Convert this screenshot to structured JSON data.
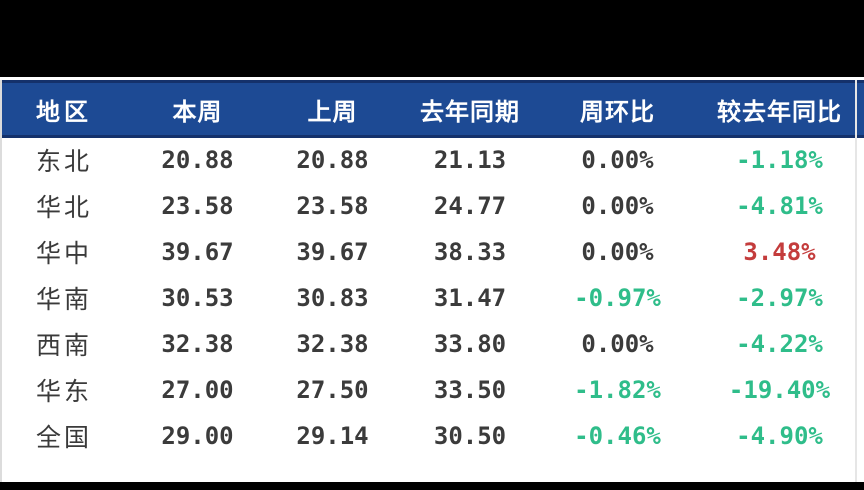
{
  "table": {
    "columns": [
      "地区",
      "本周",
      "上周",
      "去年同期",
      "周环比",
      "较去年同比"
    ],
    "rows": [
      {
        "region": "东北",
        "this_week": "20.88",
        "last_week": "20.88",
        "last_year": "21.13",
        "wow": "0.00%",
        "wow_trend": "flat",
        "yoy": "-1.18%",
        "yoy_trend": "down"
      },
      {
        "region": "华北",
        "this_week": "23.58",
        "last_week": "23.58",
        "last_year": "24.77",
        "wow": "0.00%",
        "wow_trend": "flat",
        "yoy": "-4.81%",
        "yoy_trend": "down"
      },
      {
        "region": "华中",
        "this_week": "39.67",
        "last_week": "39.67",
        "last_year": "38.33",
        "wow": "0.00%",
        "wow_trend": "flat",
        "yoy": "3.48%",
        "yoy_trend": "up"
      },
      {
        "region": "华南",
        "this_week": "30.53",
        "last_week": "30.83",
        "last_year": "31.47",
        "wow": "-0.97%",
        "wow_trend": "down",
        "yoy": "-2.97%",
        "yoy_trend": "down"
      },
      {
        "region": "西南",
        "this_week": "32.38",
        "last_week": "32.38",
        "last_year": "33.80",
        "wow": "0.00%",
        "wow_trend": "flat",
        "yoy": "-4.22%",
        "yoy_trend": "down"
      },
      {
        "region": "华东",
        "this_week": "27.00",
        "last_week": "27.50",
        "last_year": "33.50",
        "wow": "-1.82%",
        "wow_trend": "down",
        "yoy": "-19.40%",
        "yoy_trend": "down"
      },
      {
        "region": "全国",
        "this_week": "29.00",
        "last_week": "29.14",
        "last_year": "30.50",
        "wow": "-0.46%",
        "wow_trend": "down",
        "yoy": "-4.90%",
        "yoy_trend": "down"
      }
    ]
  },
  "colors": {
    "header_bg": "#1d4a94",
    "header_border": "#14316b",
    "positive_red": "#c43c3c",
    "negative_green": "#2fbd8a",
    "neutral_text": "#3b3b3b",
    "redaction_band": "#000000"
  },
  "chart_data": {
    "type": "table",
    "columns": [
      "地区",
      "本周",
      "上周",
      "去年同期",
      "周环比",
      "较去年同比"
    ],
    "rows": [
      [
        "东北",
        20.88,
        20.88,
        21.13,
        "0.00%",
        "-1.18%"
      ],
      [
        "华北",
        23.58,
        23.58,
        24.77,
        "0.00%",
        "-4.81%"
      ],
      [
        "华中",
        39.67,
        39.67,
        38.33,
        "0.00%",
        "3.48%"
      ],
      [
        "华南",
        30.53,
        30.83,
        31.47,
        "-0.97%",
        "-2.97%"
      ],
      [
        "西南",
        32.38,
        32.38,
        33.8,
        "0.00%",
        "-4.22%"
      ],
      [
        "华东",
        27.0,
        27.5,
        33.5,
        "-1.82%",
        "-19.40%"
      ],
      [
        "全国",
        29.0,
        29.14,
        30.5,
        "-0.46%",
        "-4.90%"
      ]
    ],
    "layout_hints": {
      "header_style": "white bold text on navy blue band",
      "negative_values_color": "green",
      "positive_values_color": "red",
      "gridlines": "none"
    }
  }
}
